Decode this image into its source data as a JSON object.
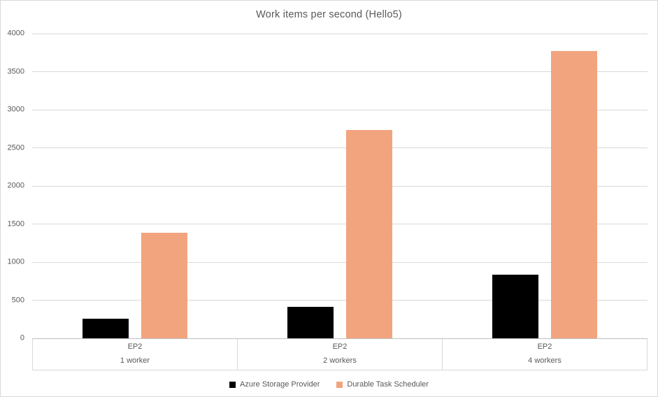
{
  "chart_data": {
    "type": "bar",
    "title": "Work items per second (Hello5)",
    "xlabel": "",
    "ylabel": "",
    "ylim": [
      0,
      4000
    ],
    "y_ticks": [
      0,
      500,
      1000,
      1500,
      2000,
      2500,
      3000,
      3500,
      4000
    ],
    "grid": true,
    "legend_position": "bottom",
    "categories": [
      {
        "line1": "EP2",
        "line2": "1 worker"
      },
      {
        "line1": "EP2",
        "line2": "2 workers"
      },
      {
        "line1": "EP2",
        "line2": "4 workers"
      }
    ],
    "series": [
      {
        "name": "Azure Storage Provider",
        "color": "#000000",
        "values": [
          260,
          415,
          835
        ]
      },
      {
        "name": "Durable Task Scheduler",
        "color": "#F2A47E",
        "values": [
          1390,
          2730,
          3770
        ]
      }
    ]
  },
  "colors": {
    "background": "#FFFFFF",
    "frame_border": "#D9D9D9",
    "gridline": "#D9D9D9",
    "axis_line": "#BFBFBF",
    "text": "#595959",
    "series_black": "#000000",
    "series_orange": "#F2A47E"
  }
}
